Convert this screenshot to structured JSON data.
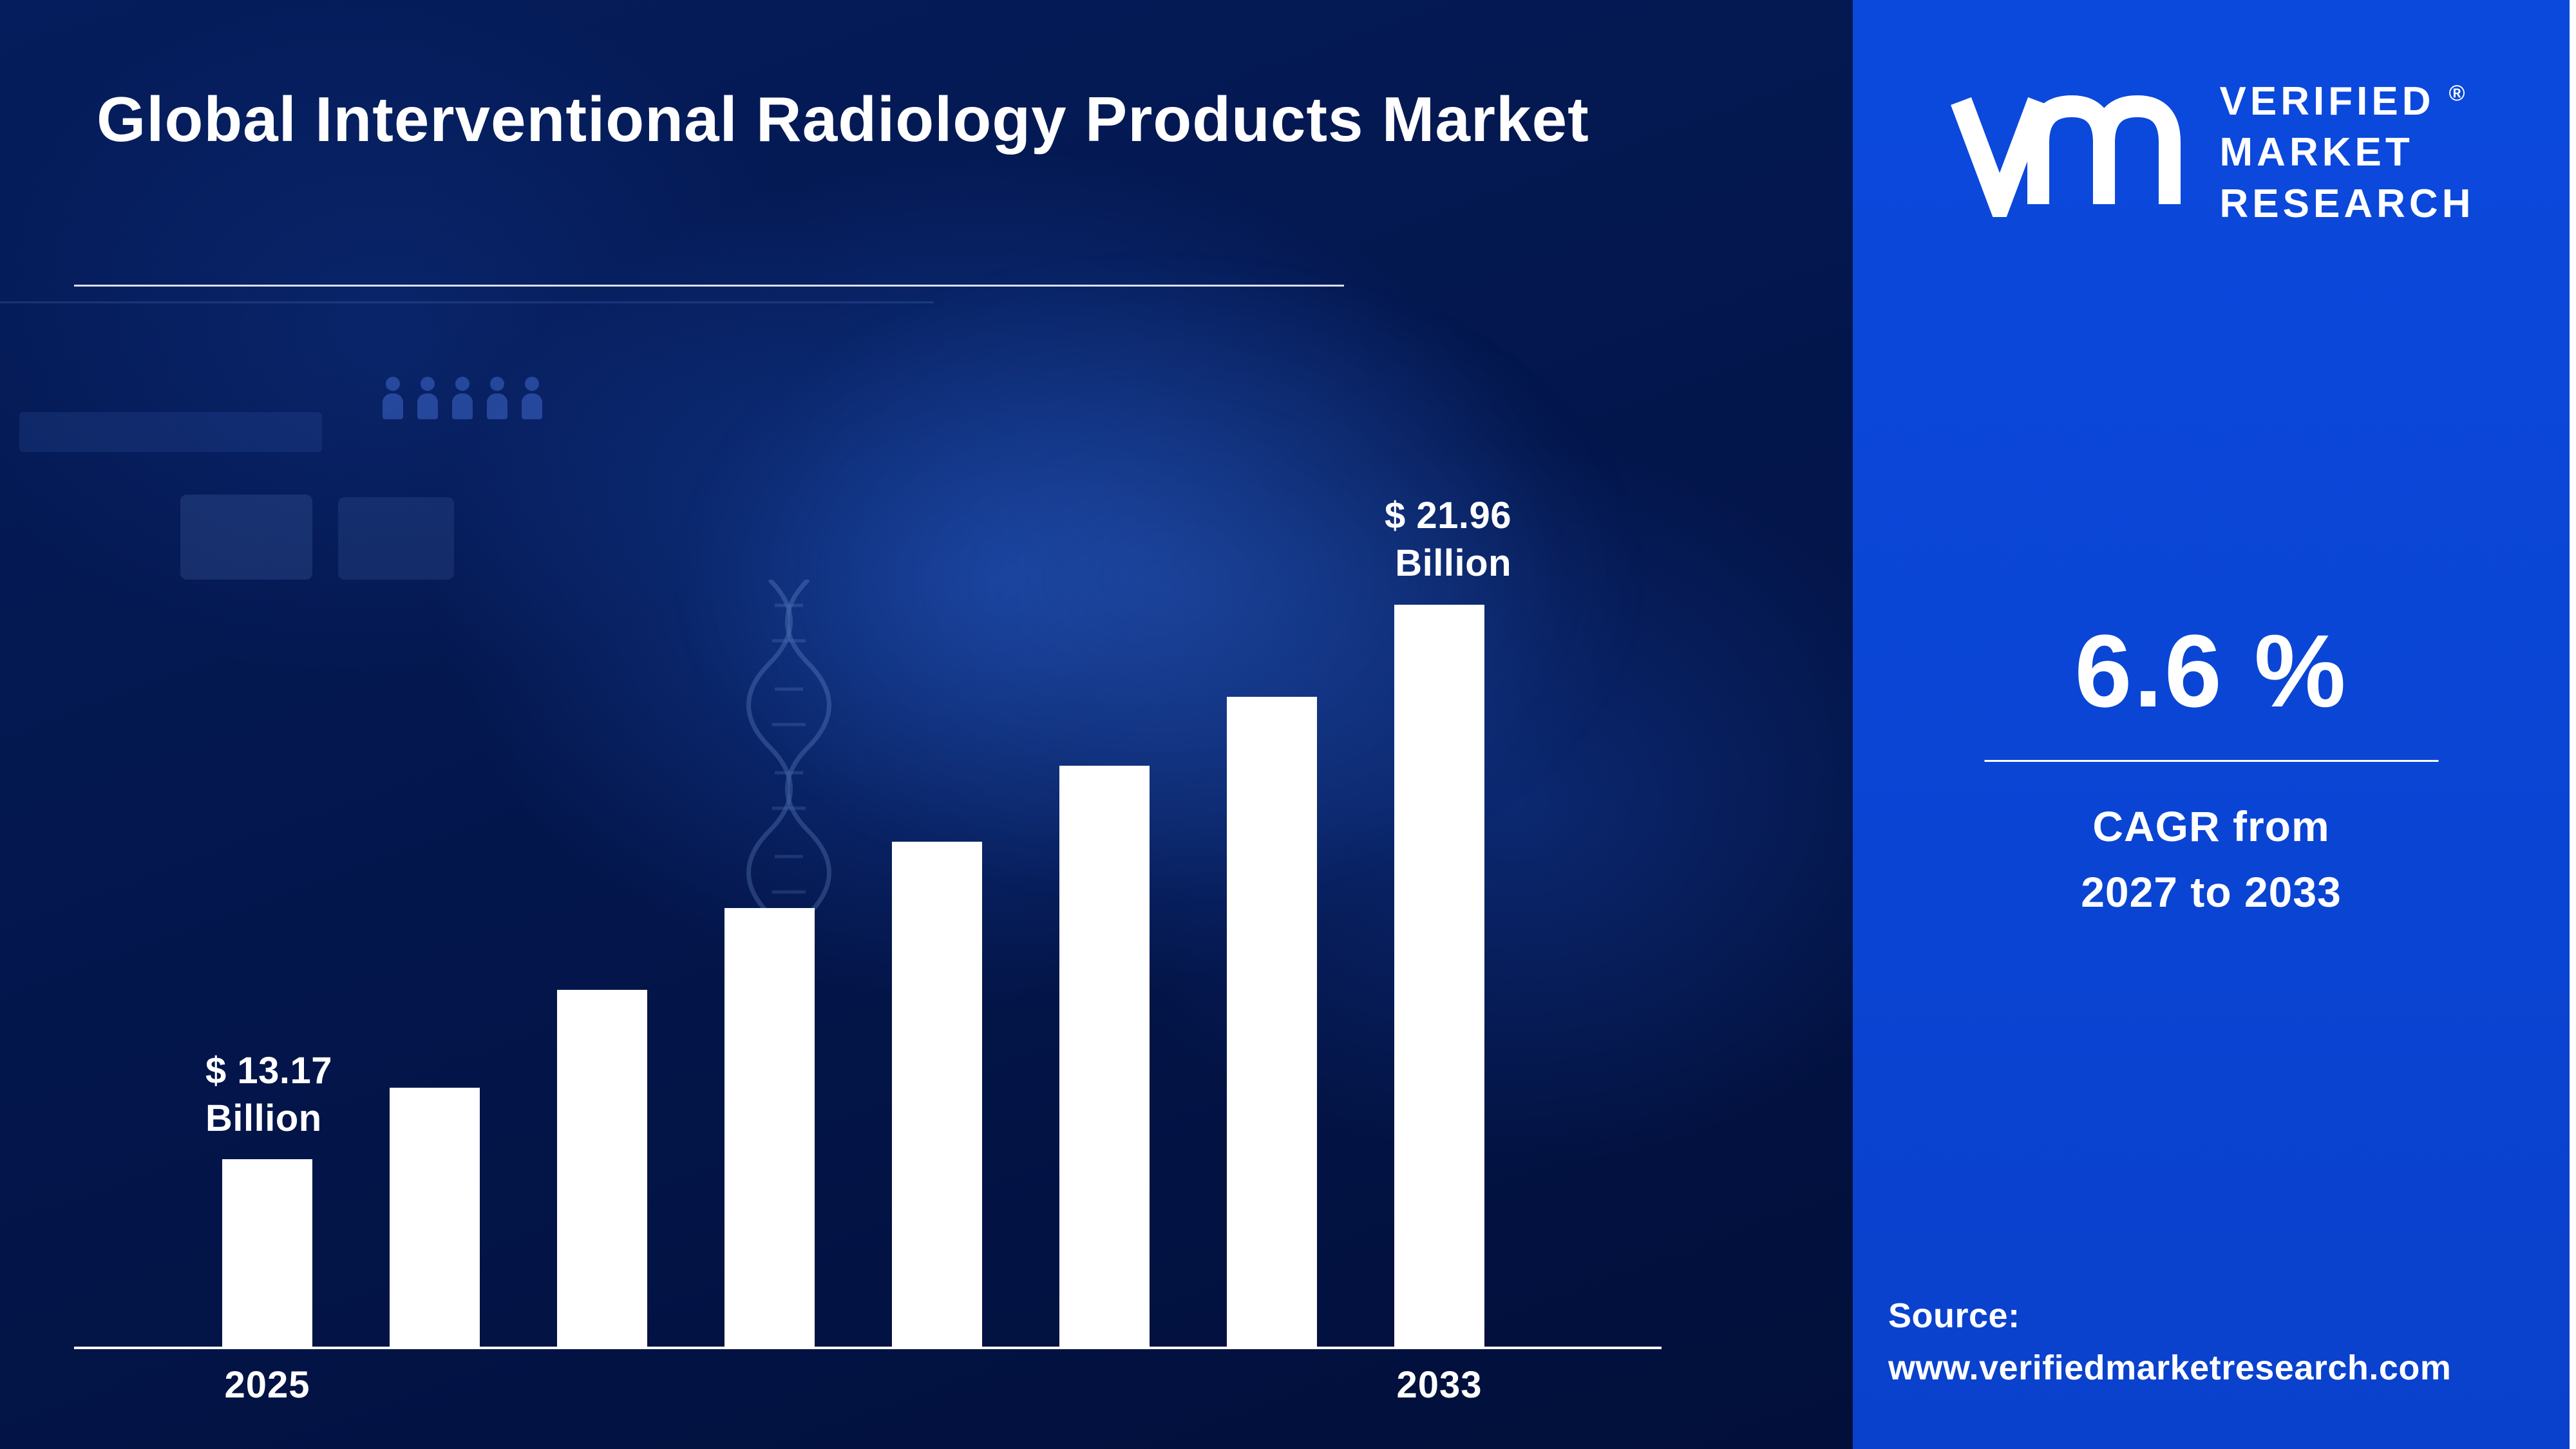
{
  "page": {
    "title": "Global Interventional Radiology Products Market"
  },
  "chart_data": {
    "type": "bar",
    "title": "Global Interventional Radiology Products Market",
    "categories": [
      "2025",
      "",
      "",
      "",
      "",
      "",
      "",
      "2033"
    ],
    "values": [
      13.17,
      14.3,
      15.85,
      17.15,
      18.2,
      19.4,
      20.5,
      21.96
    ],
    "unit": "USD Billion",
    "bar_color": "#ffffff",
    "ylim": [
      10.2,
      23
    ],
    "grid": false,
    "legend": false,
    "x_axis": {
      "first_label": "2025",
      "last_label": "2033"
    },
    "annotations": {
      "first": {
        "line1": "$ 13.17",
        "line2": "Billion"
      },
      "last": {
        "line1": "$ 21.96",
        "line2": "Billion"
      }
    }
  },
  "brand": {
    "monogram": "vmr-logo",
    "name_line1": "VERIFIED",
    "name_line2": "MARKET",
    "name_line3": "RESEARCH",
    "registered_mark": "®"
  },
  "stats": {
    "value": "6.6 %",
    "caption_line1": "CAGR from",
    "caption_line2": "2027 to 2033"
  },
  "source": {
    "label": "Source:",
    "url": "www.verifiedmarketresearch.com"
  },
  "colors": {
    "left_background": "#03154a",
    "right_panel": "#0a44d4",
    "bar": "#ffffff",
    "text": "#ffffff"
  }
}
